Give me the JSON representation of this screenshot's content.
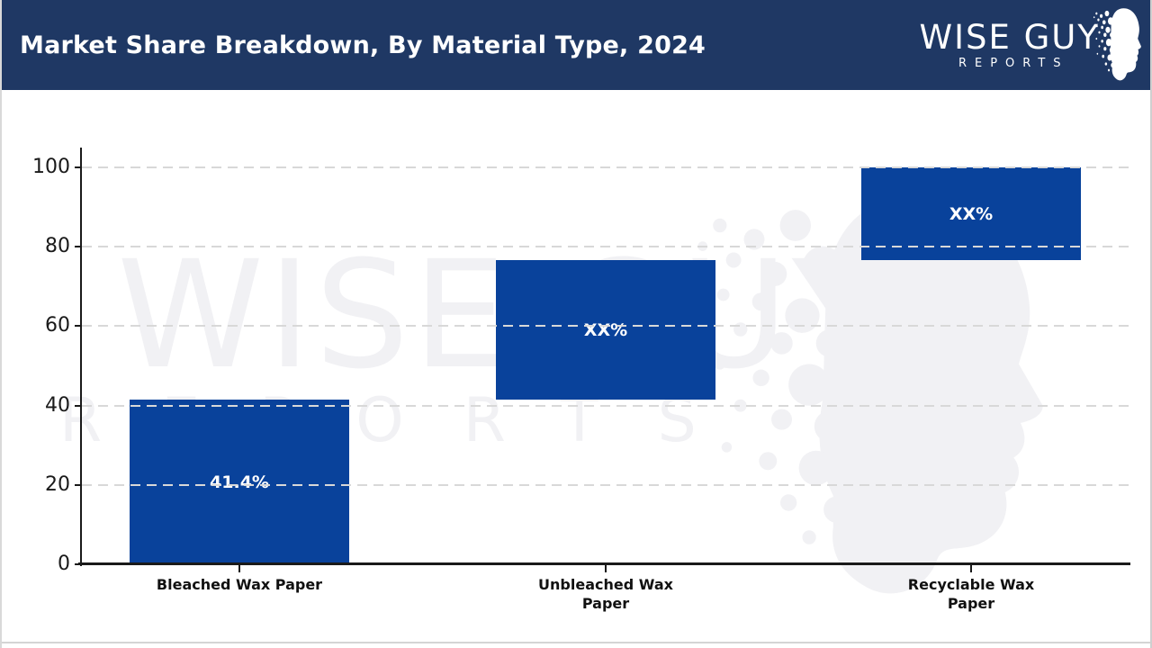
{
  "header": {
    "title": "Market Share Breakdown, By Material Type, 2024",
    "logo_line1": "WISE GUY",
    "logo_line2": "REPORTS",
    "bg_color": "#1f3864"
  },
  "watermark": {
    "line1": "WISE GUY",
    "line2": "REPORTS"
  },
  "chart_data": {
    "type": "bar",
    "subtype": "waterfall-floating-bars",
    "title": "Market Share Breakdown, By Material Type, 2024",
    "categories": [
      "Bleached Wax Paper",
      "Unbleached Wax Paper",
      "Recyclable Wax Paper"
    ],
    "categories_display": [
      [
        "Bleached Wax Paper"
      ],
      [
        "Unbleached Wax",
        "Paper"
      ],
      [
        "Recyclable Wax",
        "Paper"
      ]
    ],
    "segments": [
      {
        "category": "Bleached Wax Paper",
        "start": 0,
        "end": 41.4,
        "label": "41.4%"
      },
      {
        "category": "Unbleached Wax Paper",
        "start": 41.4,
        "end": 76.6,
        "label": "XX%"
      },
      {
        "category": "Recyclable Wax Paper",
        "start": 76.6,
        "end": 100,
        "label": "XX%"
      }
    ],
    "yticks": [
      0,
      20,
      40,
      60,
      80,
      100
    ],
    "ylim": [
      0,
      105
    ],
    "xlabel": "",
    "ylabel": "",
    "grid": "horizontal-dashed",
    "legend": "none",
    "colors": {
      "bar": "#09429b",
      "bar_label": "#ffffff",
      "grid": "#d8d8d8",
      "axis": "#1a1a1a",
      "tick_label": "#1a1a1a",
      "header_bg": "#1f3864",
      "watermark": "#f1f1f4"
    }
  }
}
